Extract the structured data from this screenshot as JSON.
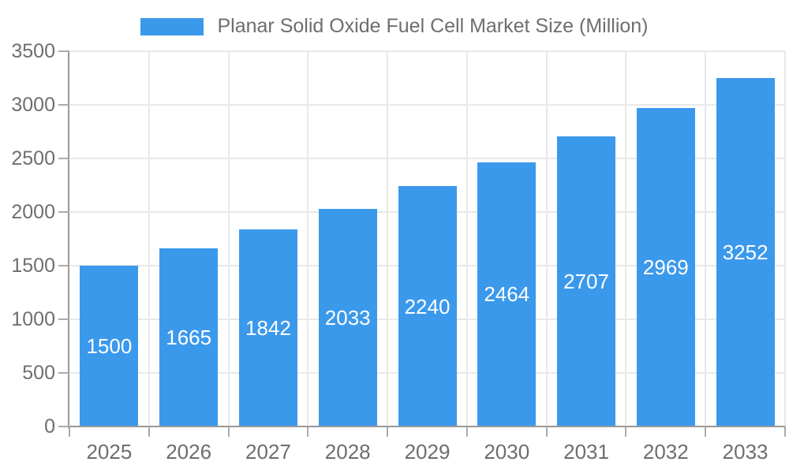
{
  "chart_data": {
    "type": "bar",
    "title": "Planar Solid Oxide Fuel Cell Market Size (Million)",
    "legend": {
      "position": "top",
      "label": "Planar Solid Oxide Fuel Cell Market Size (Million)"
    },
    "categories": [
      "2025",
      "2026",
      "2027",
      "2028",
      "2029",
      "2030",
      "2031",
      "2032",
      "2033"
    ],
    "values": [
      1500,
      1665,
      1842,
      2033,
      2240,
      2464,
      2707,
      2969,
      3252
    ],
    "series": [
      {
        "name": "Planar Solid Oxide Fuel Cell Market Size (Million)",
        "values": [
          1500,
          1665,
          1842,
          2033,
          2240,
          2464,
          2707,
          2969,
          3252
        ]
      }
    ],
    "xlabel": "",
    "ylabel": "",
    "ylim": [
      0,
      3500
    ],
    "yticks": [
      0,
      500,
      1000,
      1500,
      2000,
      2500,
      3000,
      3500
    ],
    "grid": true,
    "value_label_position": "inside-center",
    "colors": {
      "bar": "#3B99EC",
      "value_text": "#FFFFFF",
      "axis_text": "#6E6E6E",
      "axis_line": "#999999",
      "tick": "#AAAAAA",
      "gridline": "#E8E8E8",
      "background": "#FFFFFF"
    }
  }
}
